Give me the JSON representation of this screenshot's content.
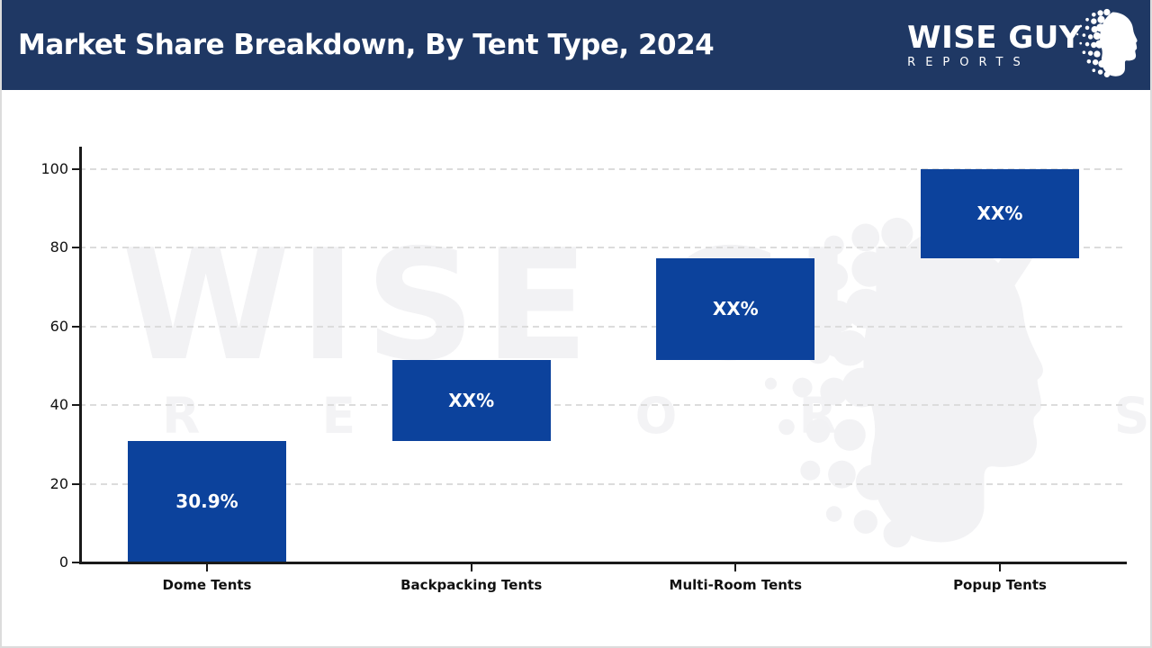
{
  "header": {
    "title": "Market Share Breakdown, By Tent Type, 2024",
    "logo": {
      "line1": "WISE GUY",
      "line2": "REPORTS"
    }
  },
  "watermark": {
    "line1": "WISE GUY",
    "line2": "R E P O R T S"
  },
  "colors": {
    "header_bg": "#1f3864",
    "bar": "#0c429c",
    "grid": "#dcdcdc",
    "axis": "#1a1a1a",
    "bar_label": "#ffffff",
    "watermark": "#f2f2f4"
  },
  "chart_data": {
    "type": "bar",
    "subtype": "waterfall",
    "title": "Market Share Breakdown, By Tent Type, 2024",
    "categories": [
      "Dome Tents",
      "Backpacking Tents",
      "Multi-Room Tents",
      "Popup Tents"
    ],
    "bars": [
      {
        "category": "Dome Tents",
        "start": 0,
        "end": 30.9,
        "label": "30.9%"
      },
      {
        "category": "Backpacking Tents",
        "start": 30.9,
        "end": 51.5,
        "label": "XX%"
      },
      {
        "category": "Multi-Room Tents",
        "start": 51.5,
        "end": 77.2,
        "label": "XX%"
      },
      {
        "category": "Popup Tents",
        "start": 77.2,
        "end": 100,
        "label": "XX%"
      }
    ],
    "unit": "%",
    "xlabel": "",
    "ylabel": "",
    "ylim": [
      0,
      100
    ],
    "yticks": [
      0,
      20,
      40,
      60,
      80,
      100
    ],
    "grid": "horizontal-dashed",
    "legend": "none"
  }
}
